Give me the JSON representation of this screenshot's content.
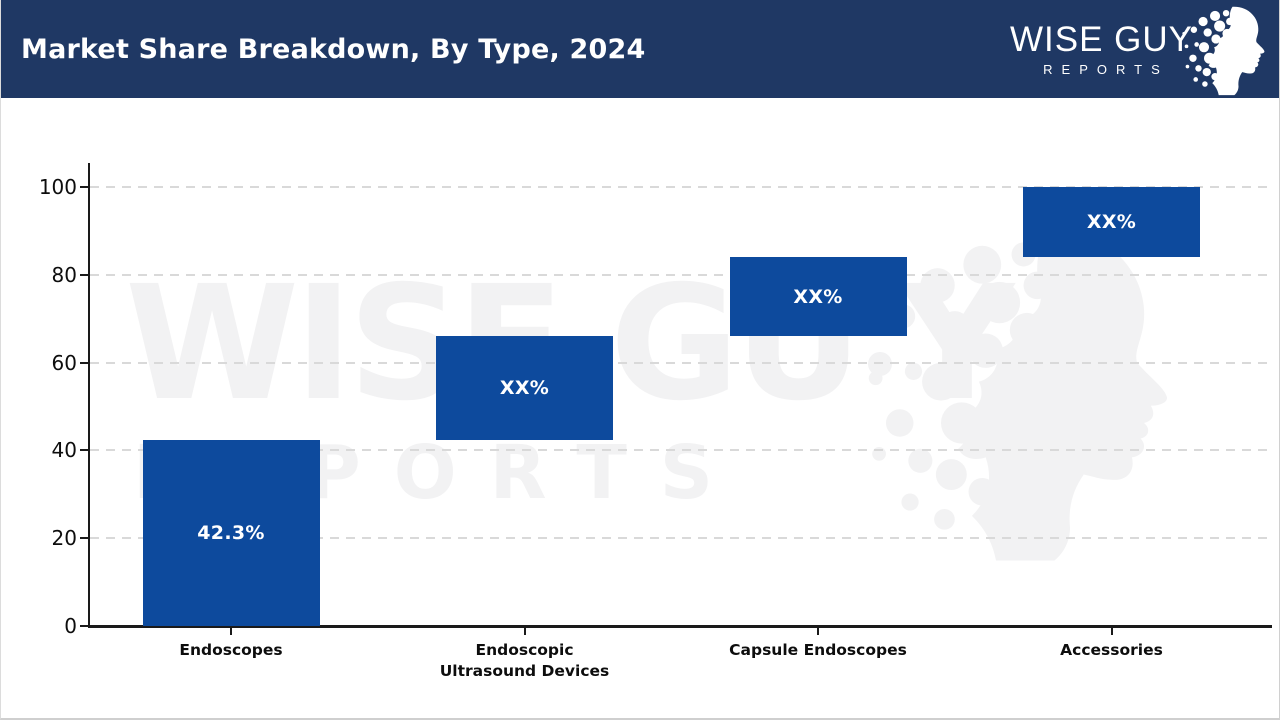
{
  "header": {
    "title": "Market Share Breakdown, By Type, 2024",
    "bg_color": "#1f3864",
    "logo": {
      "line1": "WISE GUY",
      "line2": "REPORTS",
      "icon": "dotted-head-profile"
    }
  },
  "watermark": {
    "line1_left": "WISE GU",
    "line1_right": "Y",
    "line2": "REPORTS",
    "icon": "dotted-head-profile"
  },
  "chart_data": {
    "type": "bar",
    "subtype": "waterfall",
    "title": "Market Share Breakdown, By Type, 2024",
    "categories": [
      "Endoscopes",
      "Endoscopic\nUltrasound Devices",
      "Capsule Endoscopes",
      "Accessories"
    ],
    "segments": [
      {
        "category": "Endoscopes",
        "start": 0,
        "end": 42.3,
        "label": "42.3%"
      },
      {
        "category": "Endoscopic Ultrasound Devices",
        "start": 42.3,
        "end": 66,
        "label": "XX%"
      },
      {
        "category": "Capsule Endoscopes",
        "start": 66,
        "end": 84,
        "label": "XX%"
      },
      {
        "category": "Accessories",
        "start": 84,
        "end": 100,
        "label": "XX%"
      }
    ],
    "ylim": [
      0,
      100
    ],
    "yticks": [
      0,
      20,
      40,
      60,
      80,
      100
    ],
    "xlabel": "",
    "ylabel": "",
    "grid": "horizontal-dashed",
    "legend": "none",
    "bar_color": "#0d4a9d",
    "bar_label_color": "#ffffff",
    "axis_color": "#1a1a1a",
    "gridline_color": "#d9d9d9"
  }
}
